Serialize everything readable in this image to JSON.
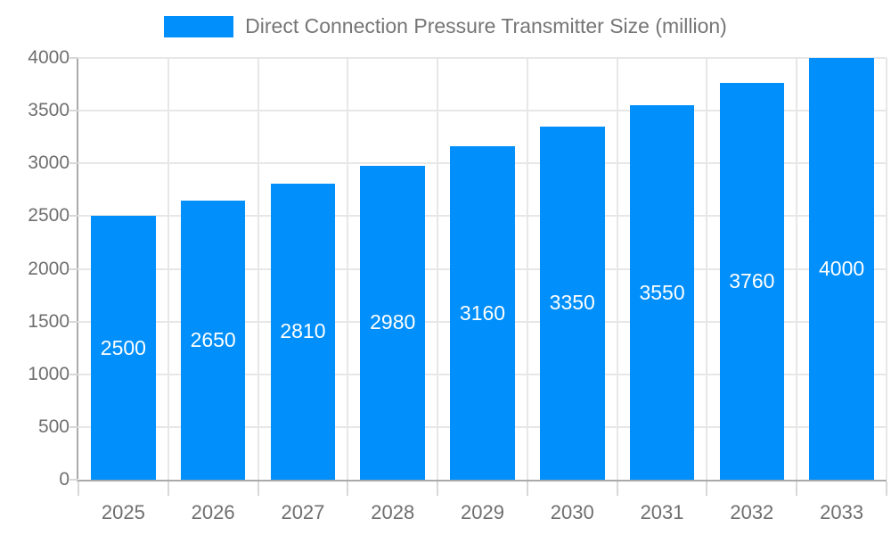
{
  "legend": {
    "series_label": "Direct Connection Pressure Transmitter Size (million)"
  },
  "colors": {
    "bar": "#008FFB",
    "grid": "#e7e7e7",
    "axis_line": "#aaaaaa",
    "tick": "#d8d8d8",
    "axis_label_text": "#6f6f6f",
    "legend_text": "#757575",
    "bar_label_text": "#ffffff",
    "background": "#ffffff"
  },
  "chart_data": {
    "type": "bar",
    "title": "Direct Connection Pressure Transmitter Size (million)",
    "categories": [
      "2025",
      "2026",
      "2027",
      "2028",
      "2029",
      "2030",
      "2031",
      "2032",
      "2033"
    ],
    "series": [
      {
        "name": "Direct Connection Pressure Transmitter Size (million)",
        "values": [
          2500,
          2650,
          2810,
          2980,
          3160,
          3350,
          3550,
          3760,
          4000
        ]
      }
    ],
    "bar_value_labels": [
      "2500",
      "2650",
      "2810",
      "2980",
      "3160",
      "3350",
      "3550",
      "3760",
      "4000"
    ],
    "xlabel": "",
    "ylabel": "",
    "ylim": [
      0,
      4000
    ],
    "yticks": [
      0,
      500,
      1000,
      1500,
      2000,
      2500,
      3000,
      3500,
      4000
    ],
    "grid": true,
    "legend_position": "top",
    "bar_width_fraction": 0.72,
    "bar_value_label_position": "center"
  }
}
